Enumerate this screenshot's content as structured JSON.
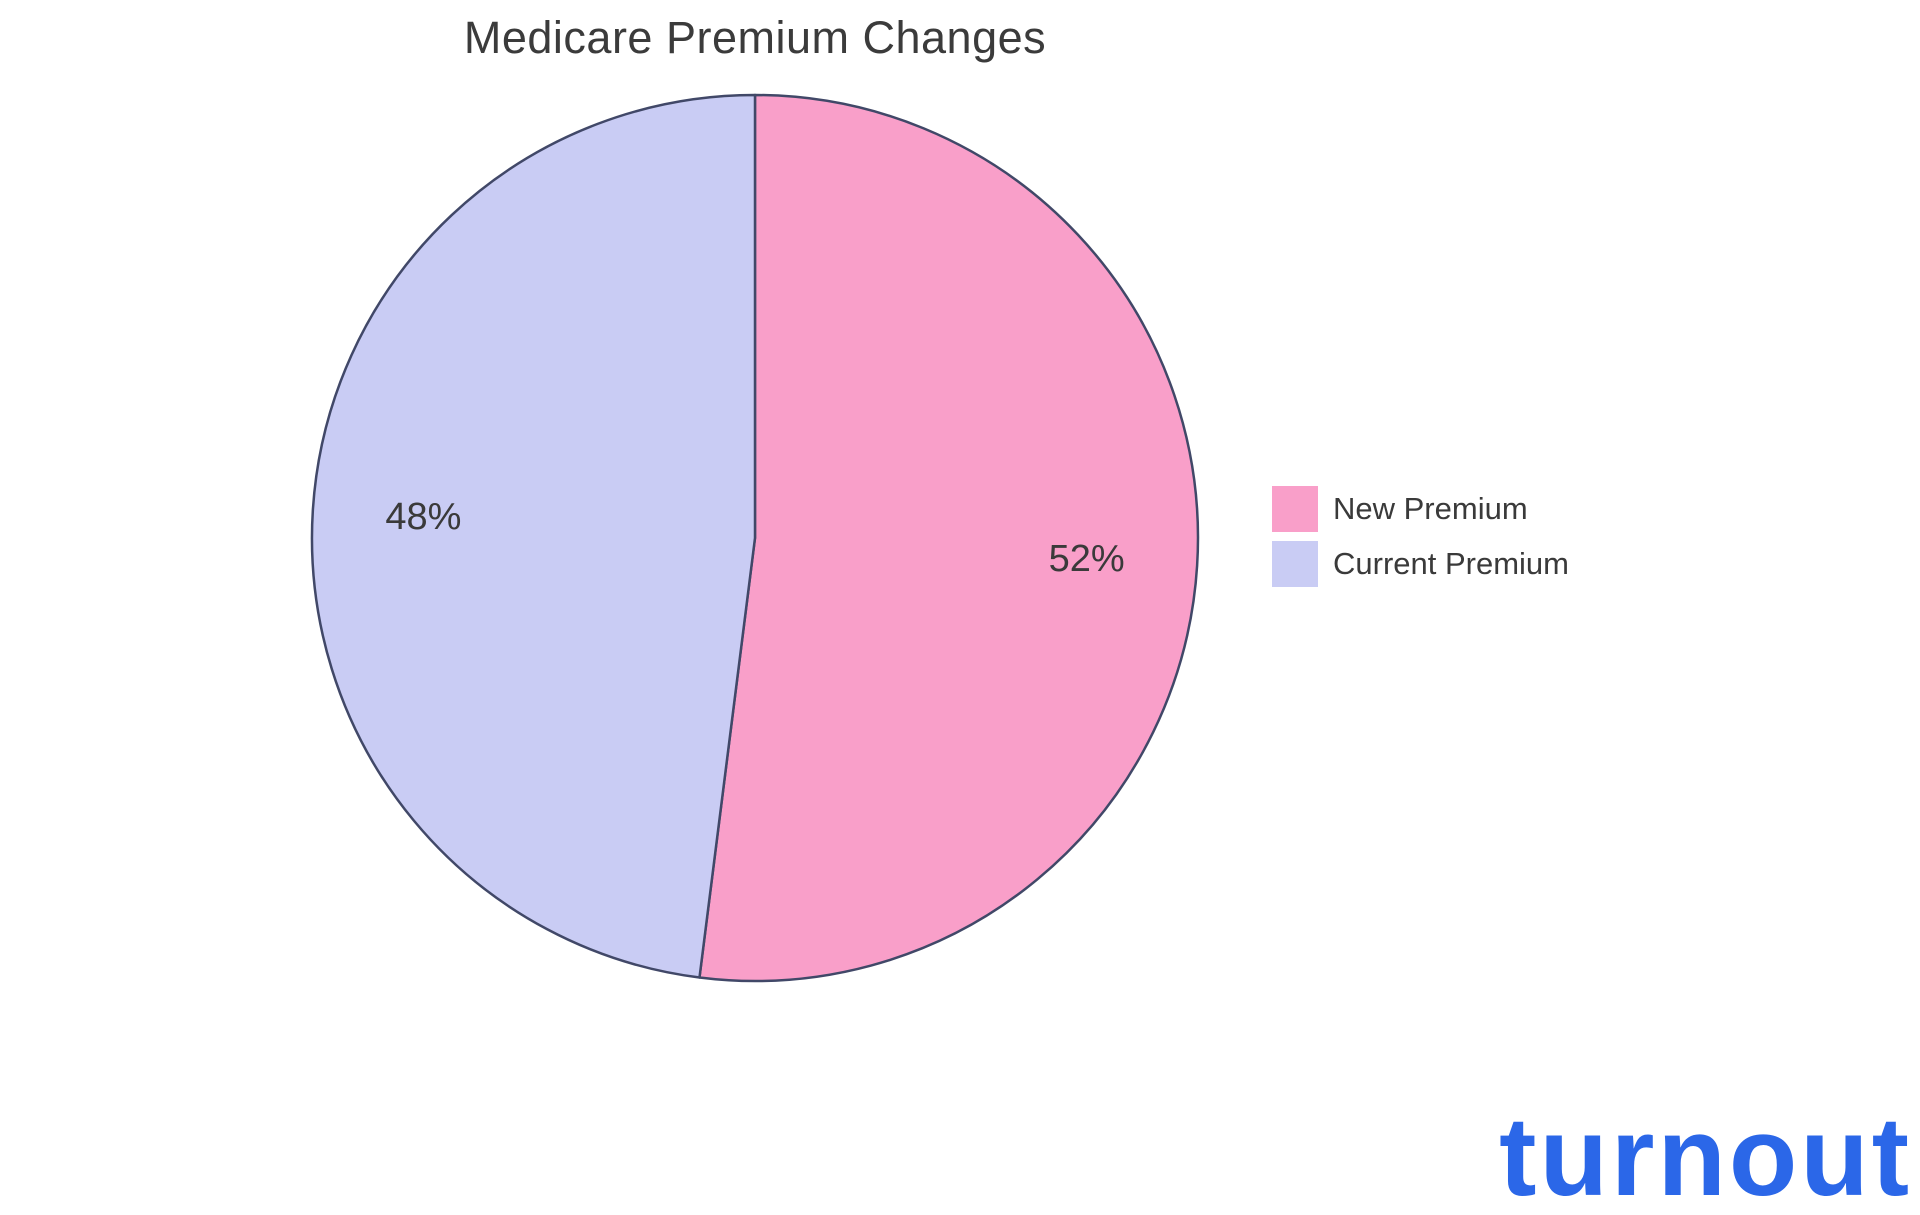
{
  "title": "Medicare Premium Changes",
  "chart_data": {
    "type": "pie",
    "labels": [
      "New Premium",
      "Current Premium"
    ],
    "values": [
      52,
      48
    ],
    "slice_label_texts": [
      "52%",
      "48%"
    ],
    "colors": [
      "#F99FC9",
      "#C9CCF4"
    ],
    "stroke_color": "#414868",
    "label_color": "#3a3a3a",
    "start_angle": "top",
    "direction": "clockwise",
    "legend_position": "right",
    "title": "Medicare Premium Changes"
  },
  "branding": {
    "logo_text": "turnout",
    "logo_color": "#2b67e8"
  }
}
